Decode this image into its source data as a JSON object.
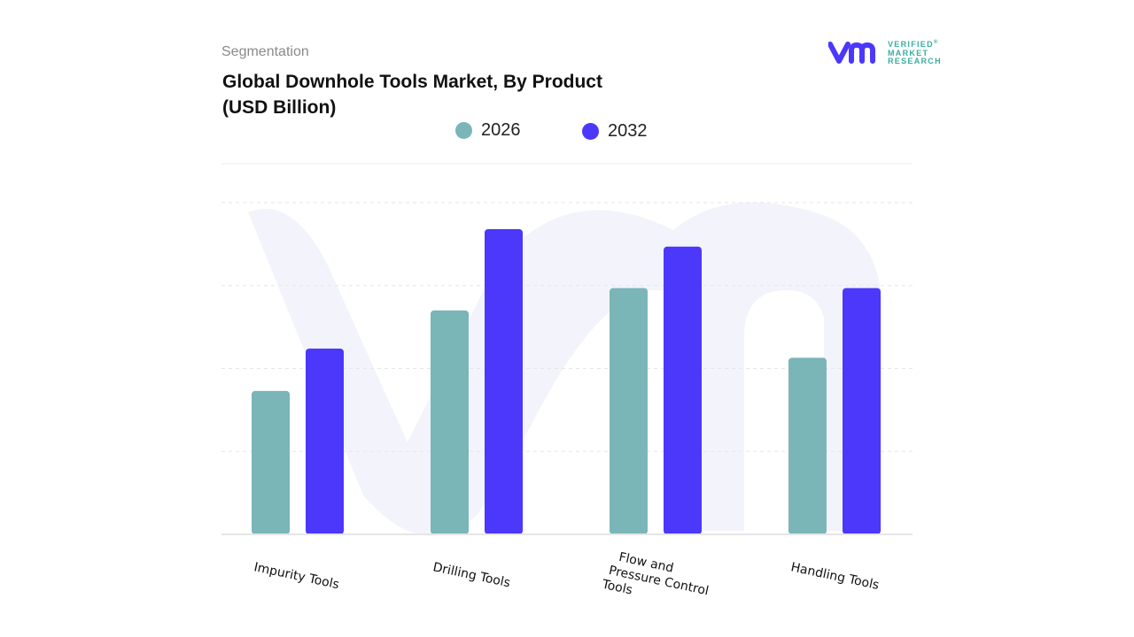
{
  "header": {
    "segment_label": "Segmentation",
    "title_line1": "Global Downhole Tools Market, By Product",
    "title_line2": "(USD Billion)"
  },
  "logo": {
    "text_line1": "VERIFIED",
    "text_line2": "MARKET",
    "text_line3": "RESEARCH",
    "registered": "®"
  },
  "chart_data": {
    "type": "bar",
    "title": "Global Downhole Tools Market, By Product (USD Billion)",
    "categories": [
      "Impurity Tools",
      "Drilling Tools",
      "Flow and Pressure Control Tools",
      "Handling Tools"
    ],
    "category_label_lines": [
      [
        "Impurity Tools"
      ],
      [
        "Drilling Tools"
      ],
      [
        "Flow and",
        "Pressure Control",
        "Tools"
      ],
      [
        "Handling Tools"
      ]
    ],
    "series": [
      {
        "name": "2026",
        "color": "#7ab5b8",
        "values": [
          1.73,
          2.7,
          2.97,
          2.13
        ]
      },
      {
        "name": "2032",
        "color": "#4b38fb",
        "values": [
          2.24,
          3.68,
          3.47,
          2.97
        ]
      }
    ],
    "ylim": [
      0,
      4
    ],
    "grid": true,
    "y_tick_labels_shown": false,
    "legend_placement": "top-center"
  }
}
